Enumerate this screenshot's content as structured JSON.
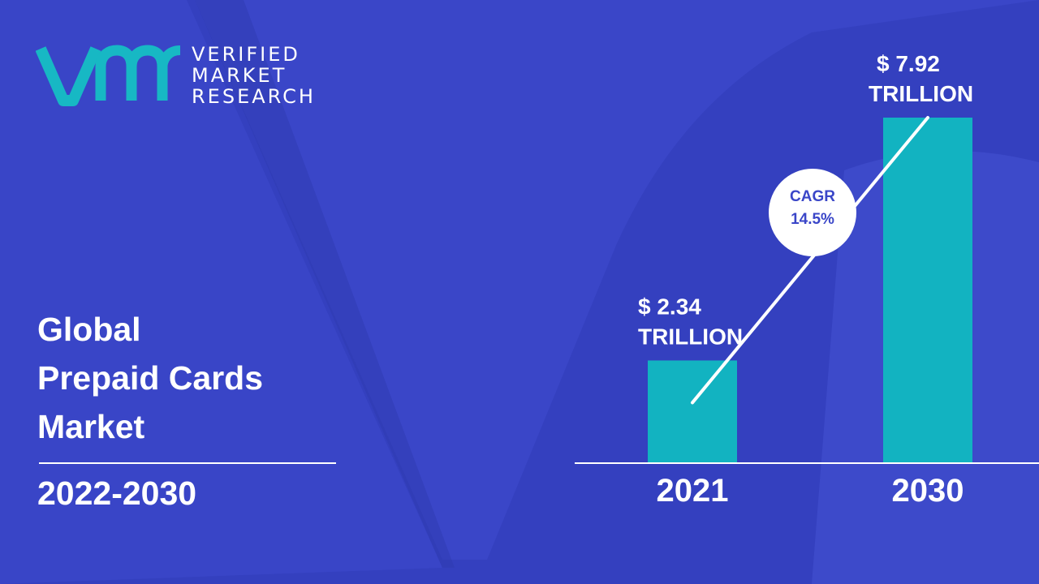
{
  "brand": {
    "line1": "VERIFIED",
    "line2": "MARKET",
    "line3": "RESEARCH",
    "logo_color": "#17b8c4"
  },
  "title": {
    "line1": "Global",
    "line2": "Prepaid Cards",
    "line3": "Market"
  },
  "period": "2022-2030",
  "colors": {
    "background": "#3a46c8",
    "shape_dark": "#2f3db8",
    "shape_light": "#4450d2",
    "bar": "#12b3c1",
    "text": "#ffffff"
  },
  "chart_data": {
    "type": "bar",
    "categories": [
      "2021",
      "2030"
    ],
    "values": [
      2.34,
      7.92
    ],
    "unit": "TRILLION",
    "value_labels": [
      {
        "line1": "$ 2.34",
        "line2": "TRILLION"
      },
      {
        "line1": "$ 7.92",
        "line2": "TRILLION"
      }
    ],
    "cagr": {
      "line1": "CAGR",
      "line2": "14.5%"
    },
    "title": "",
    "xlabel": "",
    "ylabel": ""
  }
}
